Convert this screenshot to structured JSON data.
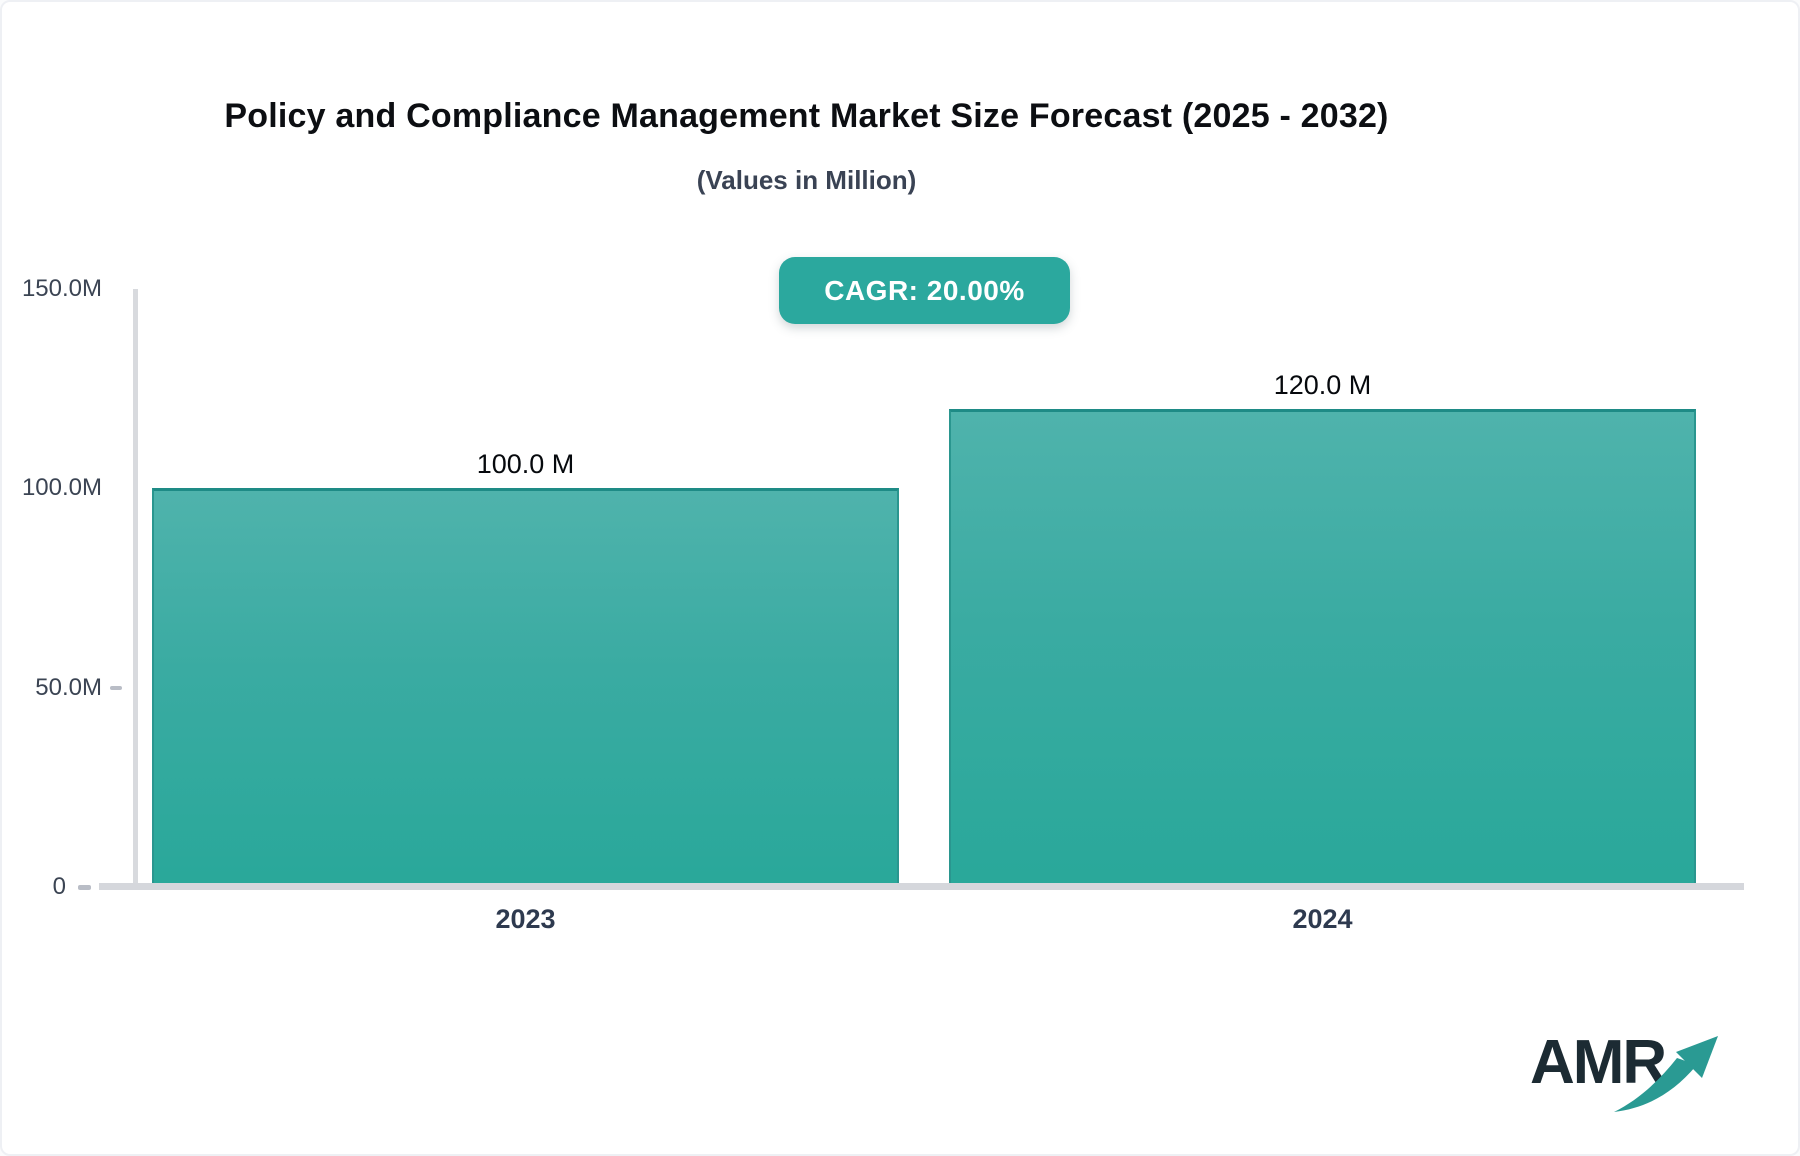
{
  "chart_data": {
    "type": "bar",
    "title": "Policy and Compliance Management Market Size Forecast (2025 - 2032)",
    "subtitle": "(Values in Million)",
    "badge_label": "CAGR: 20.00%",
    "categories": [
      "2023",
      "2024"
    ],
    "values": [
      100.0,
      120.0
    ],
    "value_labels": [
      "100.0 M",
      "120.0 M"
    ],
    "ylim": [
      0,
      150
    ],
    "yticks": [
      {
        "label": "150.0M",
        "value": 150,
        "dash": false
      },
      {
        "label": "100.0M",
        "value": 100,
        "dash": false
      },
      {
        "label": "50.0M",
        "value": 50,
        "dash": true
      },
      {
        "label": "0",
        "value": 0,
        "dash": true
      }
    ],
    "grid": false,
    "legend": "none",
    "colors": {
      "bar_gradient_top": "#4fb3ac",
      "bar_gradient_bottom": "#29a89a",
      "bar_border": "#1e8b86",
      "badge_bg": "#2ba89e",
      "axis_line": "#d5d7dc",
      "title_text": "#0c0e12",
      "subtitle_text": "#3a4354",
      "tick_text": "#3b4453",
      "x_label_text": "#2e3a4f"
    }
  },
  "logo": {
    "text": "AMR",
    "icon": "growth-arrow-icon",
    "text_color": "#1c2b33",
    "arrow_color": "#2a9a93"
  }
}
